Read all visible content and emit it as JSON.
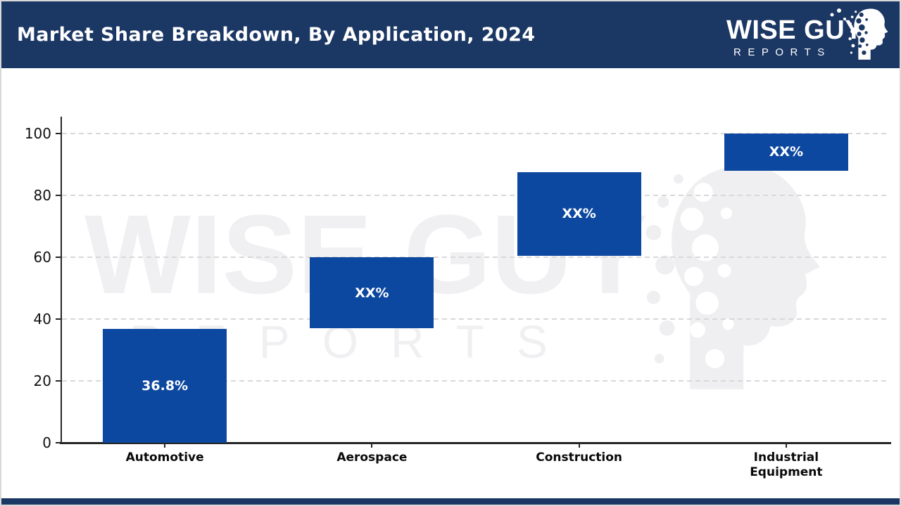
{
  "page": {
    "background": "#ffffff",
    "border_color": "#d9d9d9"
  },
  "header": {
    "background": "#1b3764",
    "title": "Market Share Breakdown, By Application, 2024",
    "logo": {
      "line1": "WISE GUY",
      "line2": "REPORTS"
    }
  },
  "watermark": {
    "line1": "WISE GUY",
    "line2": "REPORTS",
    "color": "#f0f0f2"
  },
  "footer": {
    "background": "#1b3764"
  },
  "chart_data": {
    "type": "bar",
    "subtype": "waterfall",
    "title": "Market Share Breakdown, By Application, 2024",
    "categories": [
      "Automotive",
      "Aerospace",
      "Construction",
      "Industrial Equipment"
    ],
    "segments": [
      {
        "category": "Automotive",
        "start": 0,
        "end": 36.8,
        "label": "36.8%"
      },
      {
        "category": "Aerospace",
        "start": 37,
        "end": 60,
        "label": "XX%"
      },
      {
        "category": "Construction",
        "start": 60.5,
        "end": 87.5,
        "label": "XX%"
      },
      {
        "category": "Industrial Equipment",
        "start": 88,
        "end": 100,
        "label": "XX%"
      }
    ],
    "ylim": [
      0,
      100
    ],
    "yticks": [
      0,
      20,
      40,
      60,
      80,
      100
    ],
    "xlabel": "",
    "ylabel": "",
    "grid": "horizontal-dashed",
    "legend": "none",
    "bar_color": "#0d48a0",
    "bar_label_color": "#ffffff",
    "axis_color": "#262626",
    "tick_label_color": "#111111",
    "gridline_color": "#d8d8d8"
  }
}
